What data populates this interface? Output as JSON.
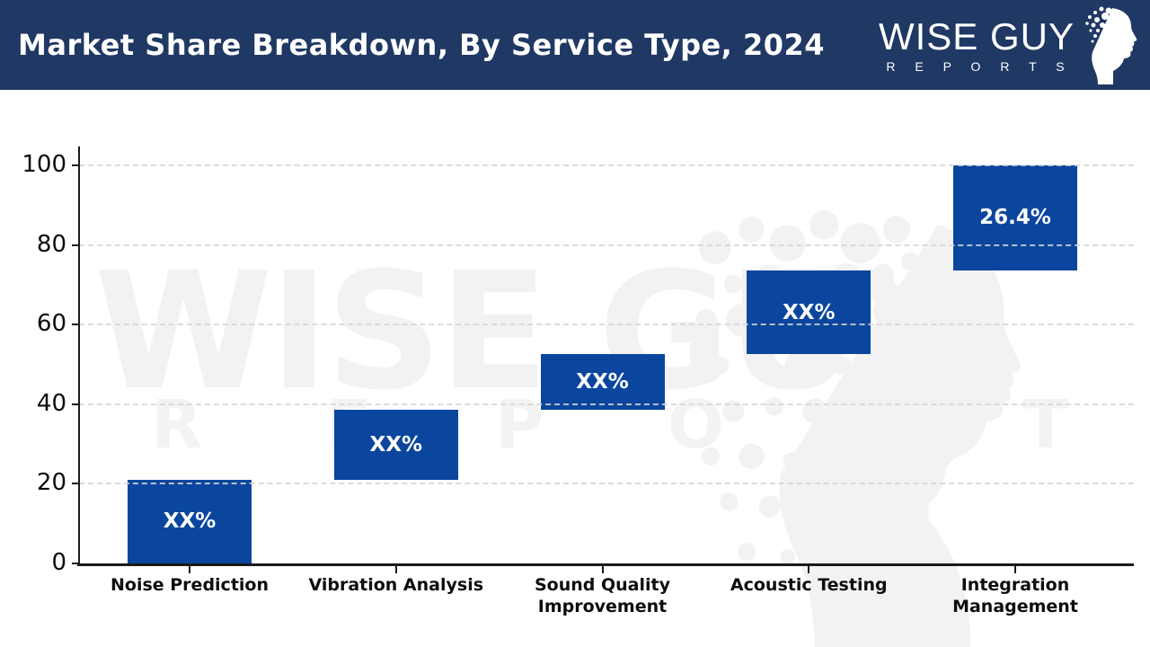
{
  "header": {
    "title": "Market Share Breakdown, By Service Type, 2024",
    "logo": {
      "wordmark": "WISE GUY",
      "tagline": "R E P O R T S"
    }
  },
  "watermark": {
    "line1": "WISE GUY",
    "line2": "R E P O R T S"
  },
  "chart_data": {
    "type": "bar",
    "subtype": "waterfall",
    "title": "Market Share Breakdown, By Service Type, 2024",
    "categories": [
      "Noise Prediction",
      "Vibration Analysis",
      "Sound Quality\nImprovement",
      "Acoustic Testing",
      "Integration\nManagement"
    ],
    "segments": [
      {
        "category": "Noise Prediction",
        "start": 0,
        "end": 21,
        "label": "XX%"
      },
      {
        "category": "Vibration Analysis",
        "start": 21,
        "end": 38.5,
        "label": "XX%"
      },
      {
        "category": "Sound Quality Improvement",
        "start": 38.5,
        "end": 52.5,
        "label": "XX%"
      },
      {
        "category": "Acoustic Testing",
        "start": 52.5,
        "end": 73.6,
        "label": "XX%"
      },
      {
        "category": "Integration Management",
        "start": 73.6,
        "end": 100,
        "label": "26.4%"
      }
    ],
    "yticks": [
      0,
      20,
      40,
      60,
      80,
      100
    ],
    "ylim": [
      0,
      105
    ],
    "xlabel": "",
    "ylabel": "",
    "grid": "horizontal-dashed",
    "legend": "none",
    "bar_color": "#0b469e",
    "axis_color": "#1a1a1a",
    "gridline_color": "#d5d5d5"
  },
  "colors": {
    "header_bg": "#203864",
    "page_bg": "#ffffff",
    "watermark": "#f2f2f2",
    "border": "#d9d9d9"
  }
}
